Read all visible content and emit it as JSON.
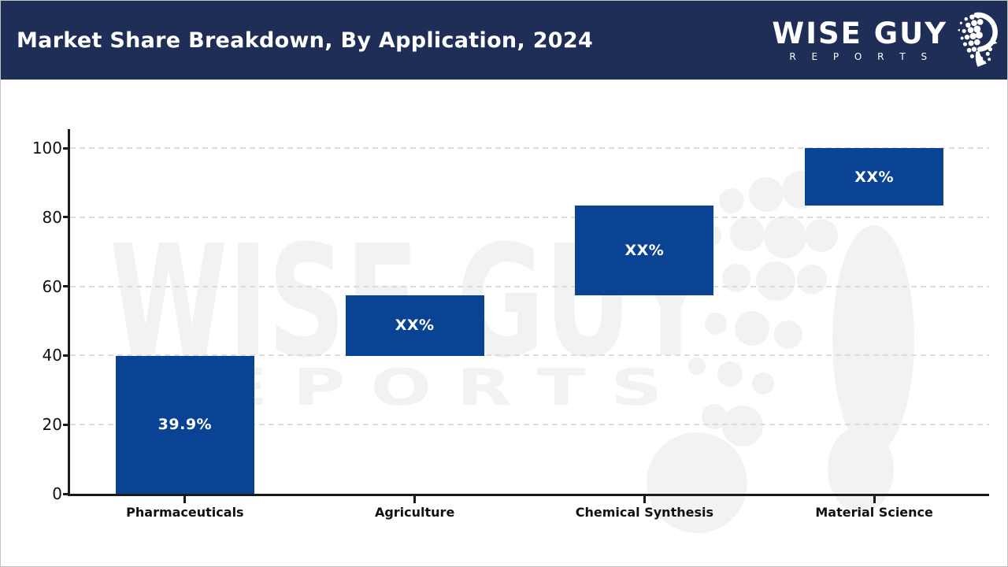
{
  "header": {
    "title": "Market Share Breakdown, By Application, 2024",
    "logo": {
      "brand": "WISE GUY",
      "sub": "R E P O R T S"
    }
  },
  "watermark": {
    "line1": "WISE GUY",
    "line2": "R E P O R T S"
  },
  "chart_data": {
    "type": "bar",
    "subtype": "waterfall",
    "title": "Market Share Breakdown, By Application, 2024",
    "categories": [
      "Pharmaceuticals",
      "Agriculture",
      "Chemical Synthesis",
      "Material Science"
    ],
    "segments": [
      {
        "category": "Pharmaceuticals",
        "start": 0,
        "end": 39.9,
        "value": 39.9,
        "label": "39.9%"
      },
      {
        "category": "Agriculture",
        "start": 39.9,
        "end": 57.5,
        "value": 17.6,
        "label": "XX%"
      },
      {
        "category": "Chemical Synthesis",
        "start": 57.5,
        "end": 83.3,
        "value": 25.8,
        "label": "XX%"
      },
      {
        "category": "Material Science",
        "start": 83.3,
        "end": 100,
        "value": 16.7,
        "label": "XX%"
      }
    ],
    "xlabel": "",
    "ylabel": "",
    "ylim": [
      0,
      100
    ],
    "yticks": [
      0,
      20,
      40,
      60,
      80,
      100
    ],
    "grid": "horizontal-dashed",
    "legend": false
  },
  "colors": {
    "header_bg": "#1f2e57",
    "bar": "#0b4394",
    "label": "#ffffff",
    "grid": "#dddddd",
    "axis": "#1a1a1a",
    "watermark": "#f2f2f2",
    "page_bg": "#ffffff",
    "page_border": "#c4c4c4"
  }
}
